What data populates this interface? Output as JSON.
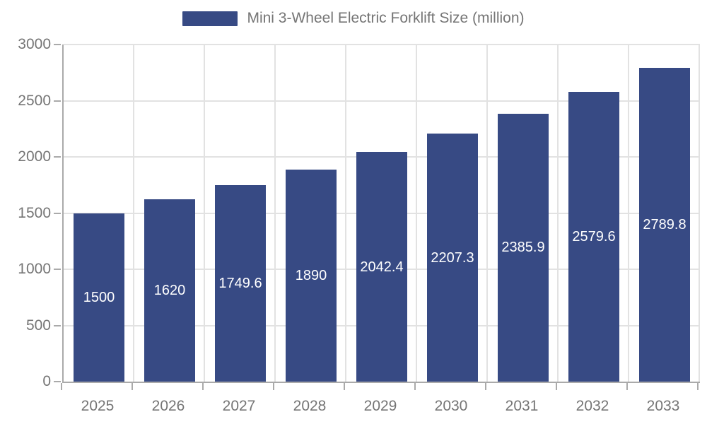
{
  "legend": {
    "label": "Mini 3-Wheel Electric Forklift Size (million)"
  },
  "chart_data": {
    "type": "bar",
    "title": "Mini 3-Wheel Electric Forklift Size (million)",
    "categories": [
      "2025",
      "2026",
      "2027",
      "2028",
      "2029",
      "2030",
      "2031",
      "2032",
      "2033"
    ],
    "series": [
      {
        "name": "Mini 3-Wheel Electric Forklift Size (million)",
        "values": [
          1500,
          1620,
          1749.6,
          1890,
          2042.4,
          2207.3,
          2385.9,
          2579.6,
          2789.8
        ]
      }
    ],
    "xlabel": "",
    "ylabel": "",
    "ylim": [
      0,
      3000
    ],
    "yticks": [
      0,
      500,
      1000,
      1500,
      2000,
      2500,
      3000
    ],
    "grid": true,
    "legend_position": "top",
    "value_label_position": "inside-center",
    "colors": {
      "bar": "#374a84",
      "grid": "#e2e2e2",
      "axis": "#aaaaaa",
      "tick_text": "#757575",
      "value_label": "#ffffff"
    }
  }
}
